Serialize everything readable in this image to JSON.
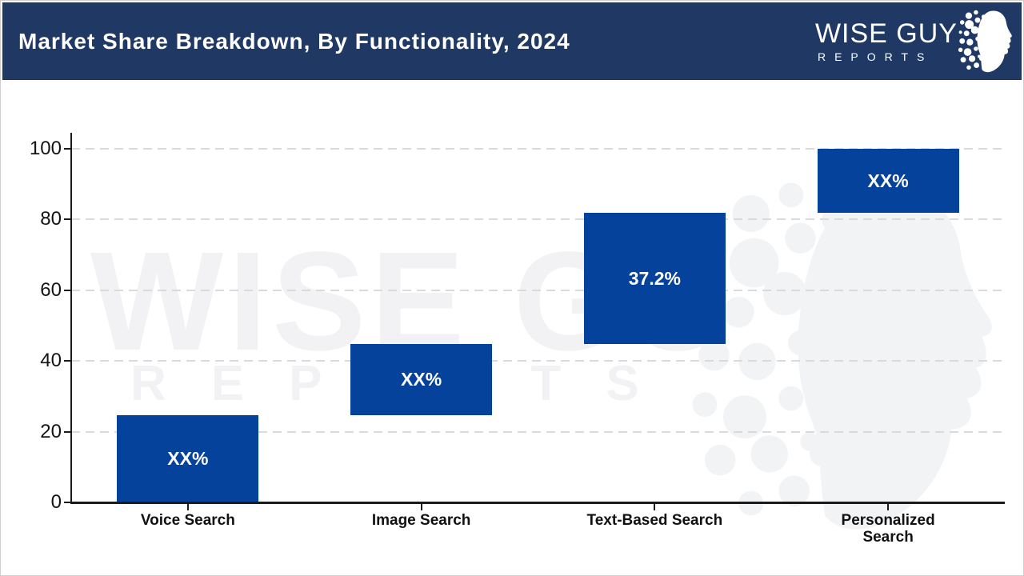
{
  "page": {
    "background": "#FFFFFF",
    "border_color": "#CFCFCF"
  },
  "header": {
    "background": "#1F3864",
    "title": "Market Share Breakdown, By Functionality, 2024",
    "logo": {
      "name": "WISE GUY",
      "sub": "REPORTS"
    }
  },
  "watermark": {
    "big": "WISE GU",
    "sub": "REPORTS"
  },
  "chart_data": {
    "type": "bar",
    "subtype": "waterfall",
    "title": "Market Share Breakdown, By Functionality, 2024",
    "categories": [
      "Voice Search",
      "Image Search",
      "Text-Based Search",
      "Personalized Search"
    ],
    "series": [
      {
        "name": "Market share (%)",
        "starts": [
          0,
          24.7,
          44.7,
          81.9
        ],
        "values": [
          24.7,
          20.0,
          37.2,
          18.1
        ]
      }
    ],
    "bar_labels": [
      "XX%",
      "XX%",
      "37.2%",
      "XX%"
    ],
    "yticks": [
      0,
      20,
      40,
      60,
      80,
      100
    ],
    "ylim": [
      0,
      105
    ],
    "xlabel": "",
    "ylabel": "",
    "grid": "horizontal-dashed",
    "legend": "none",
    "bar_color": "#05429B",
    "bar_label_color": "#FFFFFF",
    "axis_color": "#1A1A1A",
    "grid_color": "#D8DADB"
  }
}
